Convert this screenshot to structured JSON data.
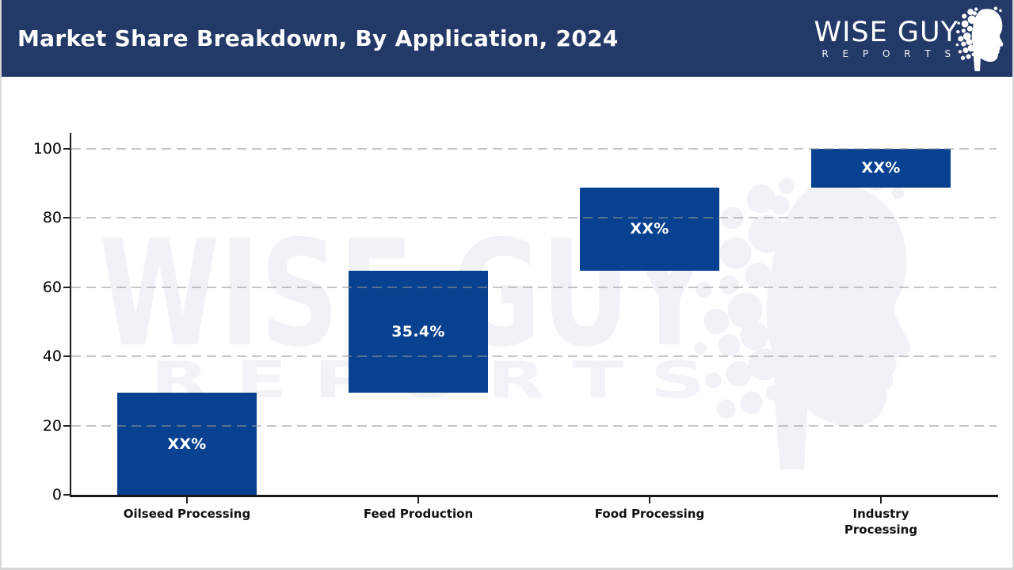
{
  "header": {
    "title": "Market Share Breakdown, By Application, 2024",
    "logo": {
      "line1": "WISE GUY",
      "line2": "R E P O R T S"
    }
  },
  "watermark": {
    "line1": "WISE GUY",
    "line2": "R E P O R T S"
  },
  "chart_data": {
    "type": "bar",
    "subtype": "floating-waterfall-segments",
    "title": "Market Share Breakdown, By Application, 2024",
    "categories": [
      "Oilseed Processing",
      "Feed Production",
      "Food Processing",
      "Industry Processing"
    ],
    "tick_labels": [
      "Oilseed Processing",
      "Feed Production",
      "Food Processing",
      "Industry\nProcessing"
    ],
    "segments": [
      {
        "category": "Oilseed Processing",
        "start": 0,
        "end": 29.4,
        "label": "XX%"
      },
      {
        "category": "Feed Production",
        "start": 29.4,
        "end": 64.8,
        "label": "35.4%"
      },
      {
        "category": "Food Processing",
        "start": 64.8,
        "end": 88.6,
        "label": "XX%"
      },
      {
        "category": "Industry Processing",
        "start": 88.6,
        "end": 100,
        "label": "XX%"
      }
    ],
    "yticks": [
      0,
      20,
      40,
      60,
      80,
      100
    ],
    "ylim": [
      0,
      105
    ],
    "xlabel": "",
    "ylabel": "",
    "grid": "horizontal-dashed",
    "legend": "none",
    "bar_color": "#08418f",
    "value_label_color": "#ffffff"
  },
  "colors": {
    "header_bg": "#233a68",
    "bar": "#08418f",
    "grid": "#c9c9c9",
    "axis": "#1a1a1a",
    "watermark": "#f0f2f5",
    "page_border": "#d8d8d8"
  }
}
